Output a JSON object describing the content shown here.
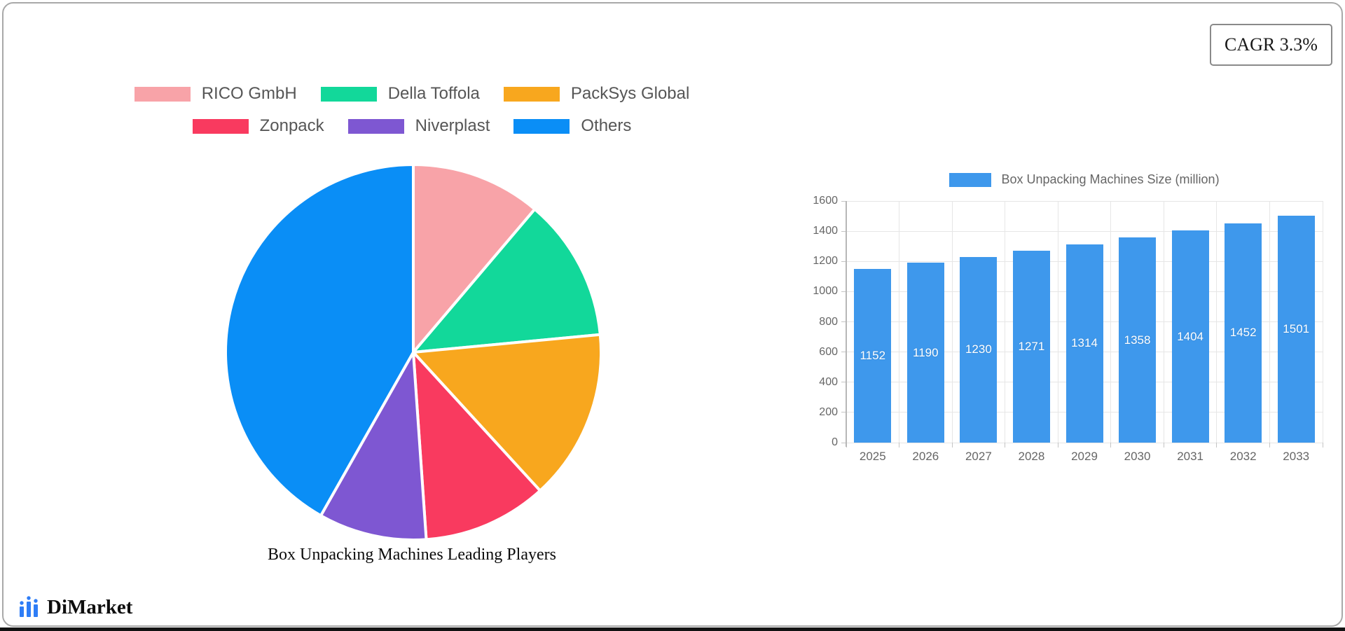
{
  "card": {
    "cagr_label": "CAGR 3.3%"
  },
  "footer": {
    "brand": "DiMarket"
  },
  "chart_data": [
    {
      "type": "pie",
      "title": "Box Unpacking Machines Leading Players",
      "legend_position": "top",
      "start_angle": "12-oclock",
      "direction": "clockwise",
      "series": [
        {
          "name": "RICO GmbH",
          "percent": 11.2,
          "color": "#F8A3A8"
        },
        {
          "name": "Della Toffola",
          "percent": 12.3,
          "color": "#12D89A"
        },
        {
          "name": "PackSys Global",
          "percent": 14.7,
          "color": "#F8A71E"
        },
        {
          "name": "Zonpack",
          "percent": 10.7,
          "color": "#F93A5F"
        },
        {
          "name": "Niverplast",
          "percent": 9.3,
          "color": "#7E57D2"
        },
        {
          "name": "Others",
          "percent": 41.8,
          "color": "#0A8EF6"
        }
      ]
    },
    {
      "type": "bar",
      "legend_label": "Box Unpacking Machines Size (million)",
      "categories": [
        "2025",
        "2026",
        "2027",
        "2028",
        "2029",
        "2030",
        "2031",
        "2032",
        "2033"
      ],
      "values": [
        1152,
        1190,
        1230,
        1271,
        1314,
        1358,
        1404,
        1452,
        1501
      ],
      "ylim": [
        0,
        1600
      ],
      "ytick_step": 200,
      "bar_color": "#3E98EC",
      "grid": true,
      "value_label_style": "white-inside-center"
    }
  ]
}
